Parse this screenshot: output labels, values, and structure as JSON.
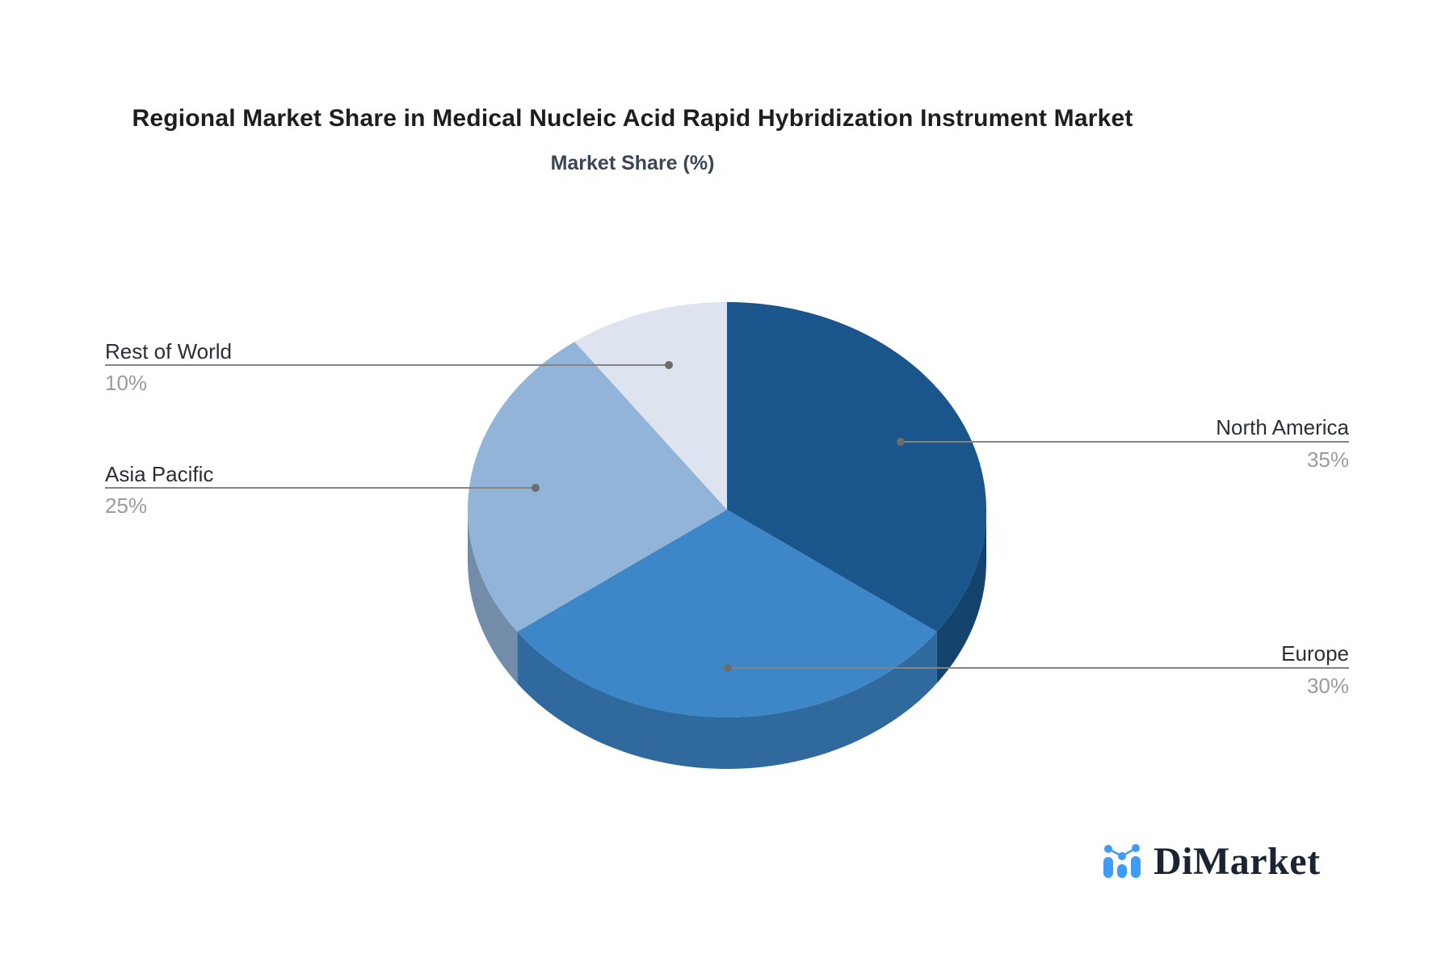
{
  "chart_data": {
    "type": "pie",
    "style": "3d",
    "title": "Regional Market Share in Medical Nucleic Acid Rapid Hybridization Instrument Market",
    "subtitle": "Market Share (%)",
    "unit": "%",
    "categories": [
      "North America",
      "Europe",
      "Asia Pacific",
      "Rest of World"
    ],
    "values": [
      35,
      30,
      25,
      10
    ],
    "colors": [
      "#1a568c",
      "#3d87c9",
      "#92b4d9",
      "#dde4ef"
    ],
    "leader_line_color": "#848484",
    "legend_position": "none",
    "grid": false,
    "labels": [
      {
        "name": "North America",
        "pct": "35%",
        "side": "right"
      },
      {
        "name": "Europe",
        "pct": "30%",
        "side": "right"
      },
      {
        "name": "Asia Pacific",
        "pct": "25%",
        "side": "left"
      },
      {
        "name": "Rest of World",
        "pct": "10%",
        "side": "left"
      }
    ]
  },
  "logo": {
    "text": "DiMarket",
    "icon": "bar-line-chart-icon",
    "icon_color": "#3f9cf6",
    "text_color": "#1a2433"
  }
}
